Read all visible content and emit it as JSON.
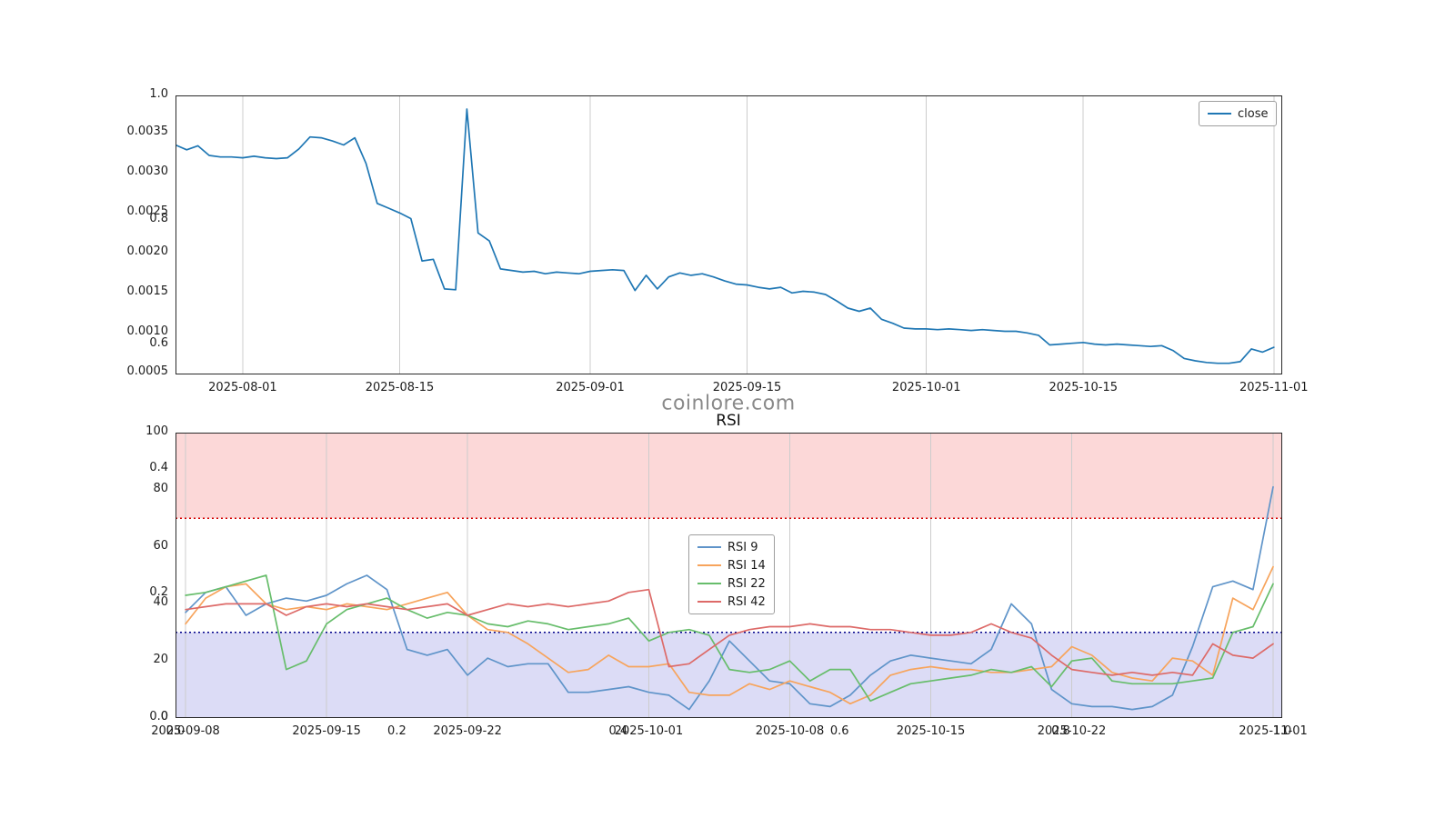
{
  "watermark": "coinlore.com",
  "parent_axes": {
    "y_tick_labels": [
      "1.0",
      "0.8",
      "0.6",
      "0.4",
      "0.2",
      "0.0"
    ],
    "x_tick_labels": [
      "0.0",
      "0.2",
      "0.4",
      "0.6",
      "0.8",
      "1.0"
    ]
  },
  "chart_data": [
    {
      "name": "price",
      "type": "line",
      "title": "",
      "xlabel": "",
      "ylabel": "",
      "legend_position": "upper right",
      "x_start": "2025-07-26",
      "x_interval_days": 1,
      "x_tick_labels": [
        "2025-08-01",
        "2025-08-15",
        "2025-09-01",
        "2025-09-15",
        "2025-10-01",
        "2025-10-15",
        "2025-11-01"
      ],
      "y_ticks": {
        "labels": [
          "0.0005",
          "0.0010",
          "0.0015",
          "0.0020",
          "0.0025",
          "0.0030",
          "0.0035"
        ],
        "values": [
          0.0005,
          0.001,
          0.0015,
          0.002,
          0.0025,
          0.003,
          0.0035
        ]
      },
      "ylim": [
        0.00048,
        0.00397
      ],
      "grid": "vertical",
      "series": [
        {
          "name": "close",
          "color": "#1f77b4",
          "values": [
            0.00335,
            0.00329,
            0.00334,
            0.00322,
            0.0032,
            0.0032,
            0.00319,
            0.00321,
            0.00319,
            0.00318,
            0.00319,
            0.0033,
            0.00345,
            0.00344,
            0.0034,
            0.00335,
            0.00344,
            0.00312,
            0.00262,
            0.00256,
            0.0025,
            0.00243,
            0.0019,
            0.00192,
            0.00155,
            0.00154,
            0.0038,
            0.00225,
            0.00215,
            0.0018,
            0.00178,
            0.00176,
            0.00177,
            0.00174,
            0.00176,
            0.00175,
            0.00174,
            0.00177,
            0.00178,
            0.00179,
            0.00178,
            0.00153,
            0.00172,
            0.00155,
            0.0017,
            0.00175,
            0.00172,
            0.00174,
            0.0017,
            0.00165,
            0.00161,
            0.0016,
            0.00157,
            0.00155,
            0.00157,
            0.0015,
            0.00152,
            0.00151,
            0.00148,
            0.0014,
            0.00131,
            0.00127,
            0.00131,
            0.00117,
            0.00112,
            0.00106,
            0.00105,
            0.00105,
            0.00104,
            0.00105,
            0.00104,
            0.00103,
            0.00104,
            0.00103,
            0.00102,
            0.00102,
            0.001,
            0.00097,
            0.00085,
            0.00086,
            0.00087,
            0.00088,
            0.00086,
            0.00085,
            0.00086,
            0.00085,
            0.00084,
            0.00083,
            0.00084,
            0.00078,
            0.00068,
            0.00065,
            0.00063,
            0.00062,
            0.00062,
            0.00064,
            0.0008,
            0.00076,
            0.00082
          ]
        }
      ]
    },
    {
      "name": "rsi",
      "type": "line",
      "title": "RSI",
      "xlabel": "",
      "ylabel": "",
      "legend_position": "center",
      "x_start": "2025-09-08",
      "x_interval_days": 1,
      "x_tick_labels": [
        "2025-09-08",
        "2025-09-15",
        "2025-09-22",
        "2025-10-01",
        "2025-10-08",
        "2025-10-15",
        "2025-10-22",
        "2025-11-01"
      ],
      "y_ticks": {
        "labels": [
          "0",
          "20",
          "40",
          "60",
          "80",
          "100"
        ],
        "values": [
          0,
          20,
          40,
          60,
          80,
          100
        ]
      },
      "ylim": [
        0,
        100
      ],
      "grid": "vertical",
      "bands": [
        {
          "name": "overbought-zone",
          "from": 70,
          "to": 100,
          "color": "#fcd8d8"
        },
        {
          "name": "oversold-zone",
          "from": 0,
          "to": 30,
          "color": "#dcdcf6"
        }
      ],
      "hlines": [
        {
          "name": "overbought-threshold",
          "value": 70,
          "color": "#d40000",
          "style": "dotted"
        },
        {
          "name": "oversold-threshold",
          "value": 30,
          "color": "#00008b",
          "style": "dotted"
        }
      ],
      "series": [
        {
          "name": "RSI 9",
          "color": "#5f94c9",
          "values": [
            37,
            44,
            46,
            36,
            40,
            42,
            41,
            43,
            47,
            50,
            45,
            24,
            22,
            24,
            15,
            21,
            18,
            19,
            19,
            9,
            9,
            10,
            11,
            9,
            8,
            3,
            13,
            27,
            20,
            13,
            12,
            5,
            4,
            8,
            15,
            20,
            22,
            21,
            20,
            19,
            24,
            40,
            33,
            10,
            5,
            4,
            4,
            3,
            4,
            8,
            25,
            46,
            48,
            45,
            81
          ]
        },
        {
          "name": "RSI 14",
          "color": "#f7a45c",
          "values": [
            33,
            42,
            46,
            47,
            40,
            38,
            39,
            38,
            40,
            39,
            38,
            40,
            42,
            44,
            36,
            31,
            30,
            26,
            21,
            16,
            17,
            22,
            18,
            18,
            19,
            9,
            8,
            8,
            12,
            10,
            13,
            11,
            9,
            5,
            8,
            15,
            17,
            18,
            17,
            17,
            16,
            16,
            17,
            18,
            25,
            22,
            16,
            14,
            13,
            21,
            20,
            15,
            42,
            38,
            53
          ]
        },
        {
          "name": "RSI 22",
          "color": "#67bd6b",
          "values": [
            43,
            44,
            46,
            48,
            50,
            17,
            20,
            33,
            38,
            40,
            42,
            38,
            35,
            37,
            36,
            33,
            32,
            34,
            33,
            31,
            32,
            33,
            35,
            27,
            30,
            31,
            29,
            17,
            16,
            17,
            20,
            13,
            17,
            17,
            6,
            9,
            12,
            13,
            14,
            15,
            17,
            16,
            18,
            11,
            20,
            21,
            13,
            12,
            12,
            12,
            13,
            14,
            30,
            32,
            47
          ]
        },
        {
          "name": "RSI 42",
          "color": "#dd6a68",
          "values": [
            38,
            39,
            40,
            40,
            40,
            36,
            39,
            40,
            39,
            40,
            39,
            38,
            39,
            40,
            36,
            38,
            40,
            39,
            40,
            39,
            40,
            41,
            44,
            45,
            18,
            19,
            24,
            29,
            31,
            32,
            32,
            33,
            32,
            32,
            31,
            31,
            30,
            29,
            29,
            30,
            33,
            30,
            28,
            22,
            17,
            16,
            15,
            16,
            15,
            16,
            15,
            26,
            22,
            21,
            26
          ]
        }
      ]
    }
  ]
}
